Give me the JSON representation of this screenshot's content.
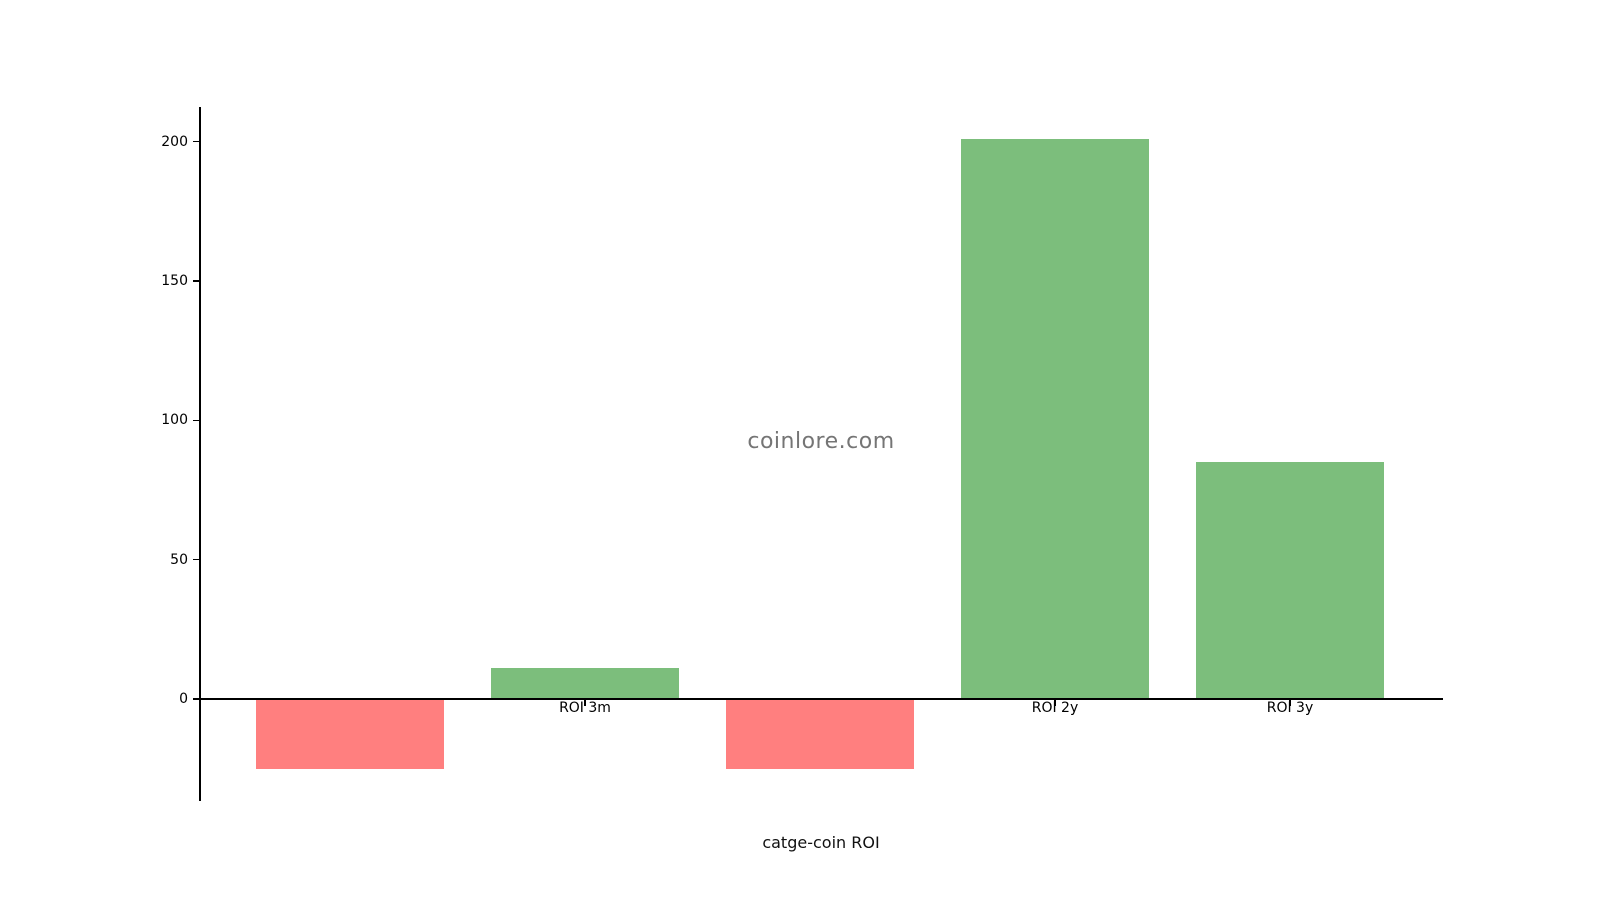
{
  "chart_data": {
    "type": "bar",
    "title": "catge-coin ROI",
    "watermark": "coinlore.com",
    "categories": [
      "",
      "ROI 3m",
      "",
      "ROI 2y",
      "ROI 3y"
    ],
    "values": [
      -25,
      11,
      -25,
      201,
      85
    ],
    "yticks": [
      0,
      50,
      100,
      150,
      200
    ],
    "ylim": [
      -36,
      212
    ],
    "xlabel": "",
    "ylabel": "",
    "grid": false,
    "legend": false,
    "colors": {
      "positive": "#7cbe7c",
      "negative": "#ff7f7f",
      "axis": "#000000",
      "tick_label": "#000000",
      "watermark": "#757575",
      "title": "#111111",
      "background": "#ffffff"
    }
  }
}
